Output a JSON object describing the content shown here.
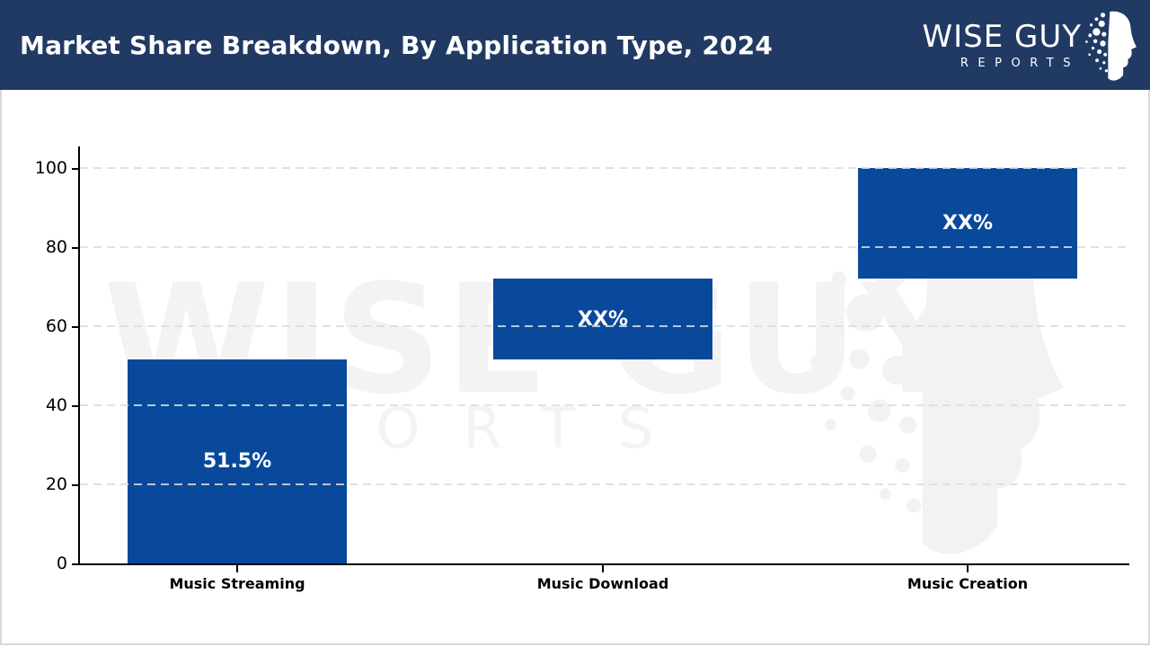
{
  "header": {
    "title": "Market Share Breakdown, By Application Type, 2024",
    "logo": {
      "wordmark": "WISE GUY",
      "subtitle": "REPORTS"
    }
  },
  "watermark": {
    "line1": "WISE GUY",
    "line2": "REPORTS"
  },
  "chart_data": {
    "type": "bar",
    "subtype": "waterfall",
    "title": "Market Share Breakdown, By Application Type, 2024",
    "categories": [
      "Music Streaming",
      "Music Download",
      "Music Creation"
    ],
    "series": [
      {
        "name": "Market Share (%)",
        "segments": [
          [
            0,
            51.5
          ],
          [
            51.5,
            72
          ],
          [
            72,
            100
          ]
        ],
        "labels": [
          "51.5%",
          "XX%",
          "XX%"
        ]
      }
    ],
    "yticks": [
      0,
      20,
      40,
      60,
      80,
      100
    ],
    "ylim": [
      0,
      105
    ],
    "xlabel": "",
    "ylabel": "",
    "grid": "horizontal-dashed",
    "legend": "none",
    "bar_color": "#09499c",
    "bar_label_color": "#ffffff"
  },
  "colors": {
    "header_bg": "#213a64",
    "bar": "#09499c",
    "grid": "#dcdcdc",
    "axis": "#000000",
    "watermark": "#f3f3f3",
    "edge": "#d9d9d9"
  }
}
